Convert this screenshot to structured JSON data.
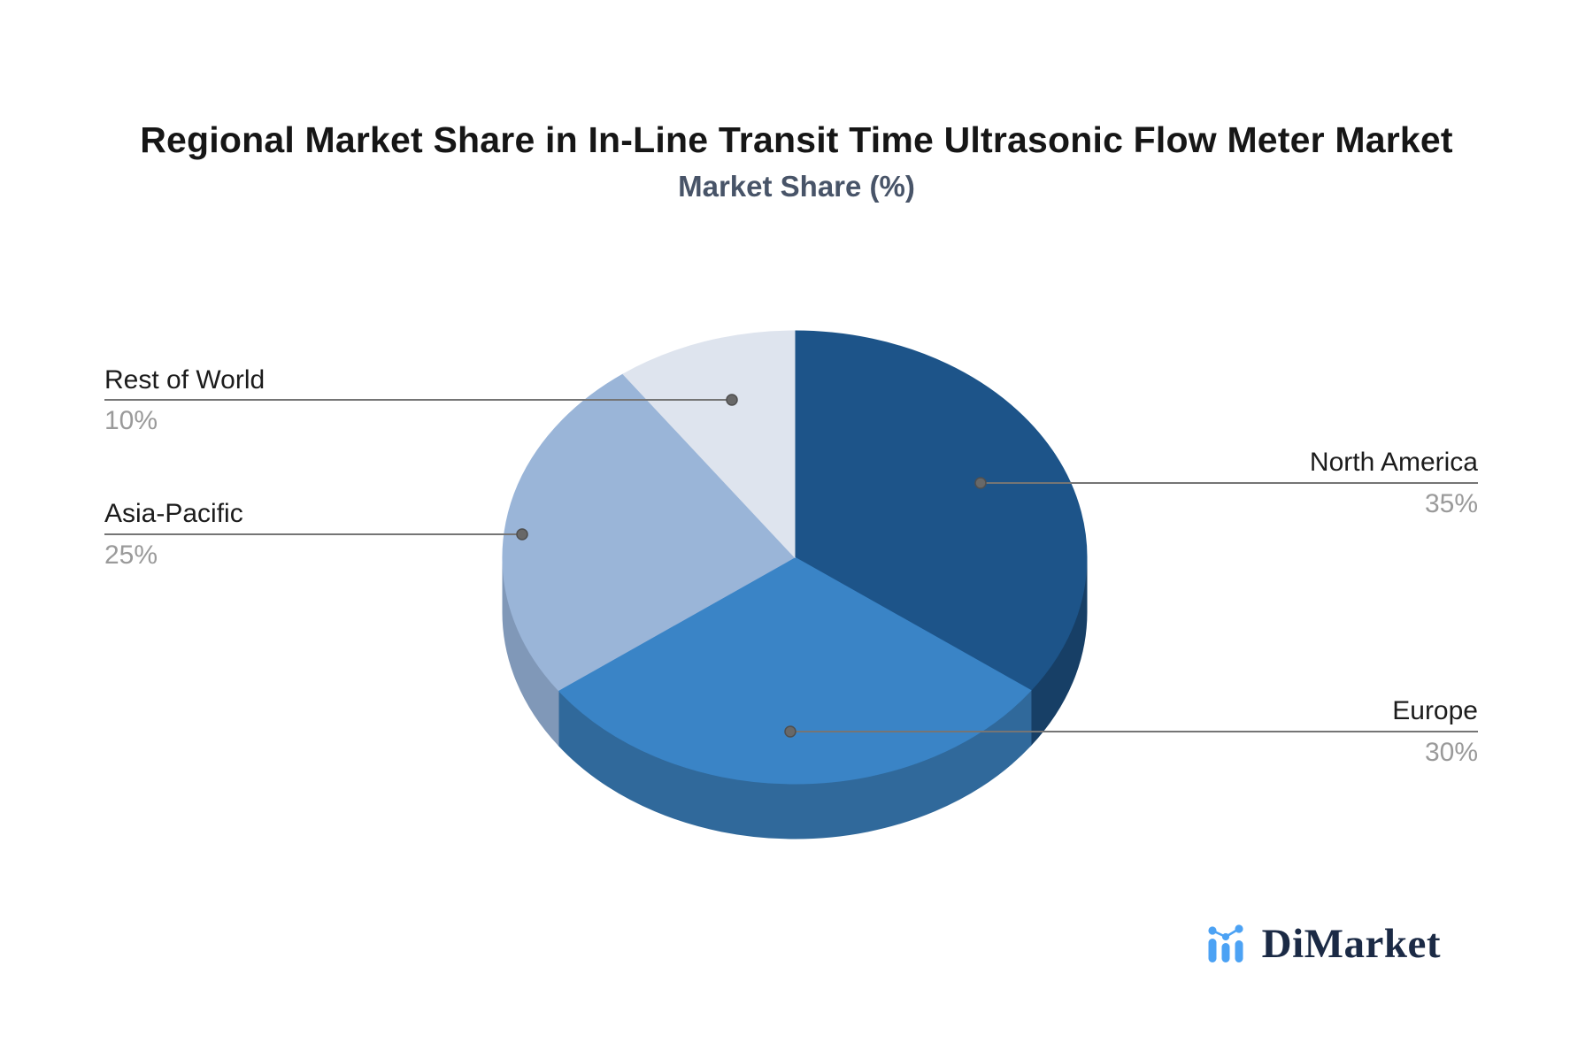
{
  "header": {
    "title": "Regional Market Share in In-Line Transit Time Ultrasonic Flow Meter Market",
    "subtitle": "Market Share (%)"
  },
  "chart_data": {
    "type": "pie",
    "style": "3d-depth",
    "title": "Regional Market Share in In-Line Transit Time Ultrasonic Flow Meter Market",
    "subtitle": "Market Share (%)",
    "unit": "percent",
    "direction": "clockwise",
    "start_angle_deg": 0,
    "legend_position": "none",
    "label_style": "leader-lines",
    "slices": [
      {
        "label": "North America",
        "value": 35,
        "display_value": "35%",
        "color": "#1d5489",
        "side_color": "#173f66"
      },
      {
        "label": "Europe",
        "value": 30,
        "display_value": "30%",
        "color": "#3a84c6",
        "side_color": "#30699b"
      },
      {
        "label": "Asia-Pacific",
        "value": 25,
        "display_value": "25%",
        "color": "#9ab5d8",
        "side_color": "#8098b8"
      },
      {
        "label": "Rest of World",
        "value": 10,
        "display_value": "10%",
        "color": "#dee4ee",
        "side_color": "#b9c4d4"
      }
    ],
    "label_color": "#1c1c1c",
    "value_color": "#9a9a9a",
    "leader_line_color": "#757575"
  },
  "branding": {
    "logo_text": "DiMarket",
    "logo_text_color": "#1b2a45",
    "logo_icon_color": "#4ca2f4"
  }
}
